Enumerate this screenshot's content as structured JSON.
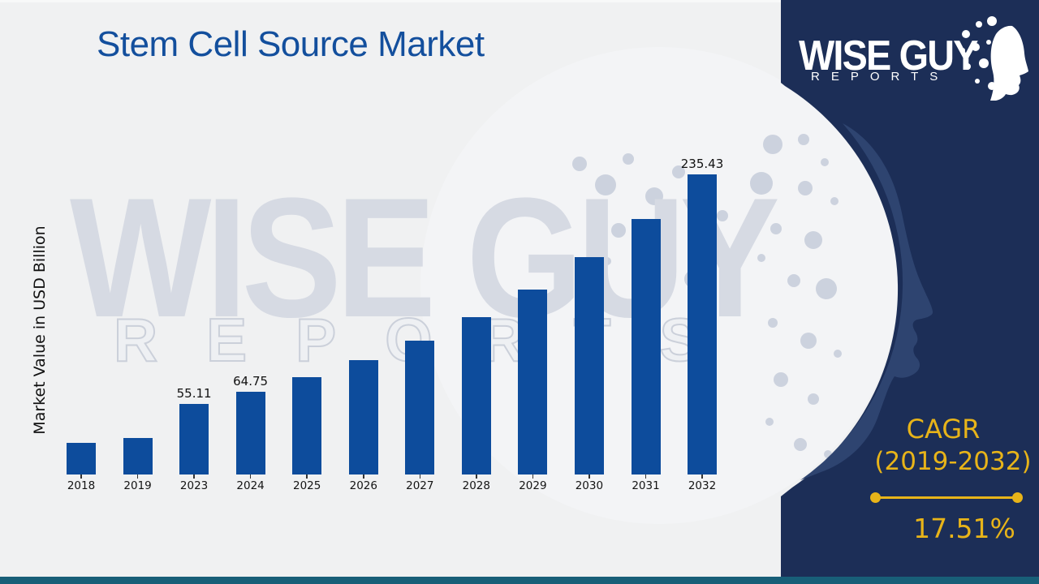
{
  "title": {
    "text": "Stem Cell Source Market",
    "color": "#134f9d"
  },
  "logo": {
    "name": "WISE GUY",
    "sub": "REPORTS"
  },
  "watermark": {
    "line1": "WISE GUY",
    "line2": "REPORTS"
  },
  "chart_data": {
    "type": "bar",
    "title": "Stem Cell Source Market",
    "categories": [
      "2018",
      "2019",
      "2023",
      "2024",
      "2025",
      "2026",
      "2027",
      "2028",
      "2029",
      "2030",
      "2031",
      "2032"
    ],
    "values": [
      24.6,
      28.9,
      55.11,
      64.75,
      76.1,
      89.4,
      105.1,
      123.5,
      145.1,
      170.5,
      200.3,
      235.43
    ],
    "data_labels": [
      "",
      "",
      "55.11",
      "64.75",
      "",
      "",
      "",
      "",
      "",
      "",
      "",
      "235.43"
    ],
    "xlabel": "",
    "ylabel": "Market Value in USD Billion",
    "ylim": [
      0,
      248
    ],
    "grid": false,
    "legend": "none",
    "bar_color": "#0d4c9c"
  },
  "side_panel": {
    "cagr_title": "CAGR",
    "cagr_period": "(2019-2032)",
    "cagr_value": "17.51%",
    "accent_color": "#e8b419",
    "bg_color": "#1c2e57"
  },
  "decor": {
    "bottom_strip_color": "#185f78",
    "face_color": "#2e4470",
    "circle_color": "#f3f4f6",
    "dot_color": "#ccd2de"
  }
}
